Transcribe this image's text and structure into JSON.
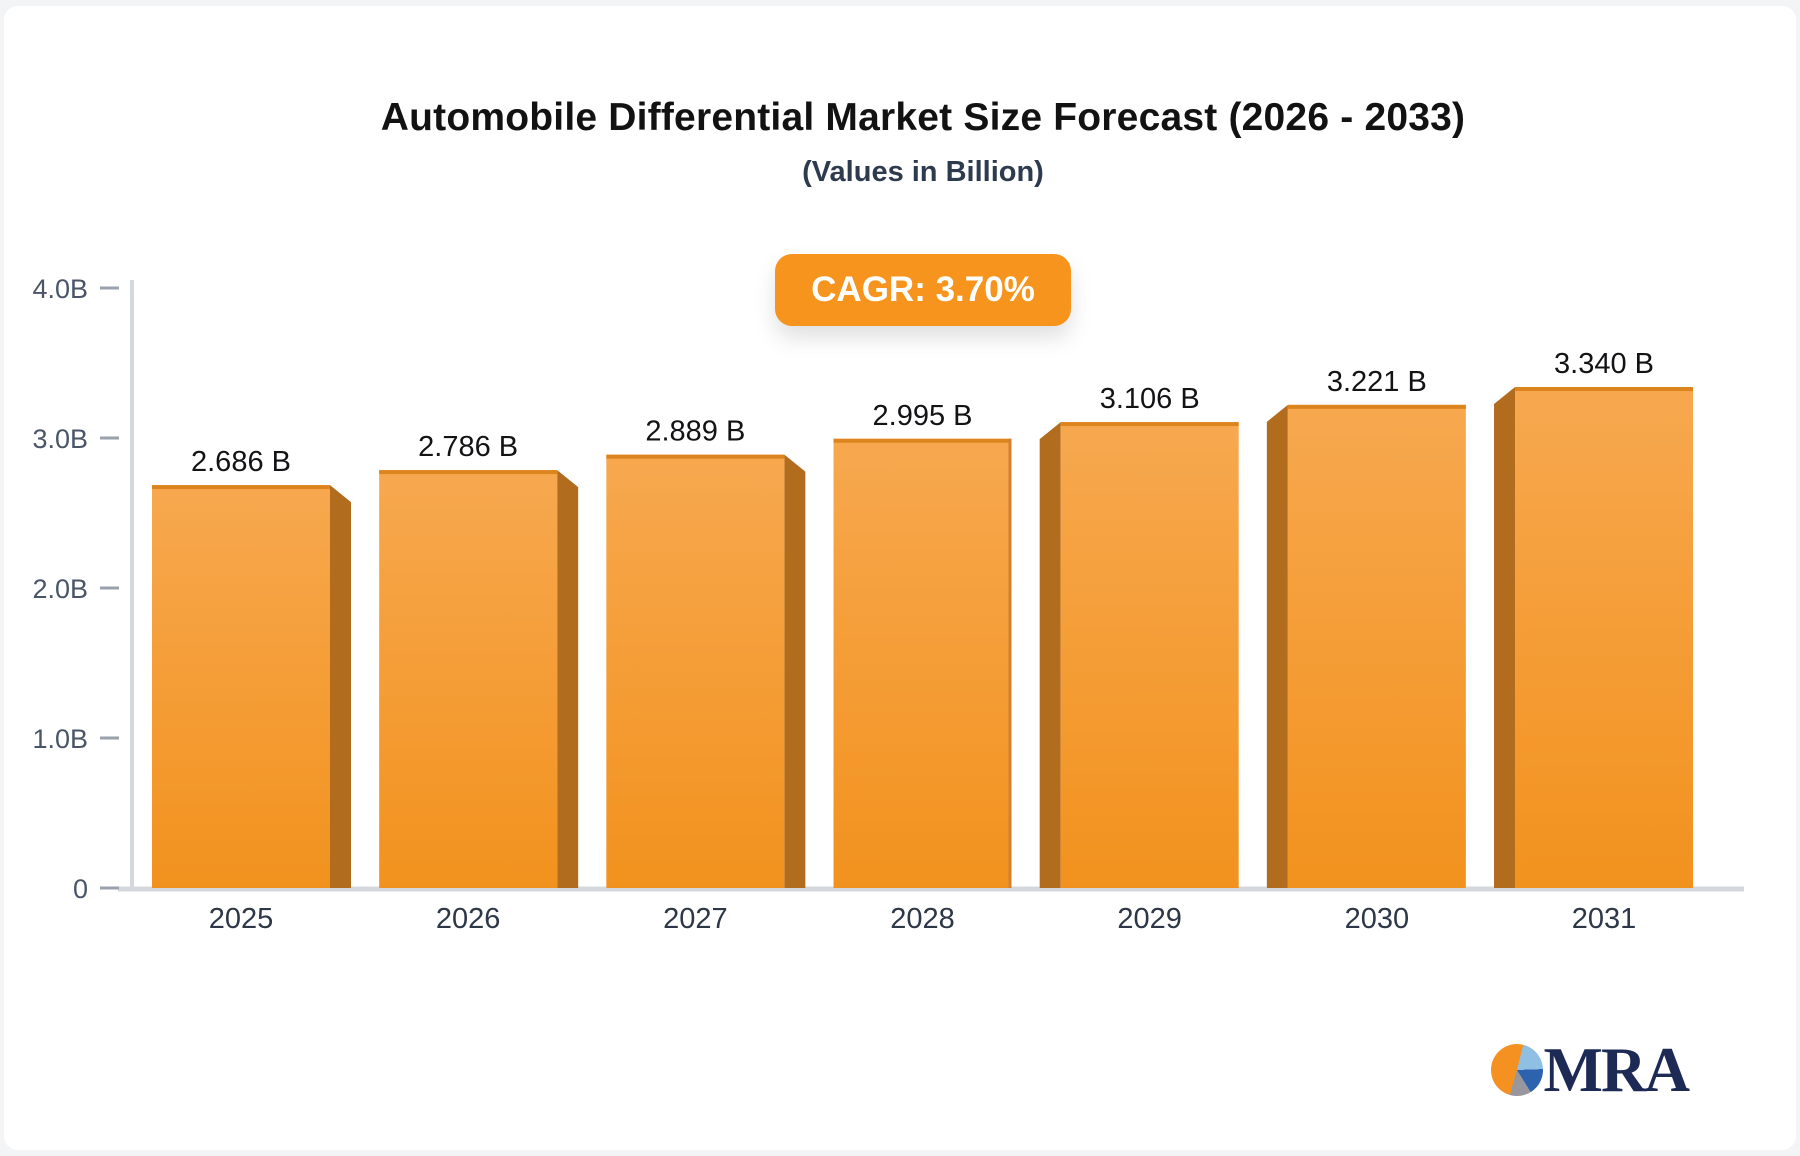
{
  "header": {
    "title": "Automobile Differential Market Size Forecast (2026 - 2033)",
    "subtitle": "(Values in Billion)",
    "cagr_label": "CAGR: 3.70%"
  },
  "badge": {
    "bg": "#F7941E",
    "text_color": "#FFFFFF"
  },
  "chart_data": {
    "type": "bar",
    "title": "Automobile Differential Market Size Forecast (2026 - 2033)",
    "subtitle": "(Values in Billion)",
    "annotation": "CAGR: 3.70%",
    "categories": [
      "2025",
      "2026",
      "2027",
      "2028",
      "2029",
      "2030",
      "2031"
    ],
    "values": [
      2.686,
      2.786,
      2.889,
      2.995,
      3.106,
      3.221,
      3.34
    ],
    "value_labels": [
      "2.686 B",
      "2.786 B",
      "2.889 B",
      "2.995 B",
      "3.106 B",
      "3.221 B",
      "3.340 B"
    ],
    "ylim": [
      0,
      4.0
    ],
    "yticks": {
      "values": [
        4.0,
        3.0,
        2.0,
        1.0,
        0
      ],
      "labels": [
        "4.0B",
        "3.0B",
        "2.0B",
        "1.0B",
        "0"
      ]
    },
    "grid": false,
    "legend": "none",
    "colors": {
      "bar_top": "#F7A84F",
      "bar_bottom": "#F2921E",
      "bar_top_edge": "#DC851F",
      "bar_side": "#B16C1E",
      "center_bar_right_edge": "#D08030",
      "axis_line": "#D4D8DC",
      "tick_dash": "#99A2AC",
      "tick_label": "#4A5568",
      "value_label": "#131316",
      "category_label": "#2D3748"
    }
  },
  "footer": {
    "brand": "MRA",
    "logo_colors": {
      "pie_orange": "#F59120",
      "pie_light_blue": "#8FC0E4",
      "pie_dark_blue": "#2C62AE",
      "pie_gray": "#97979D",
      "text_navy": "#1C2A55"
    }
  }
}
